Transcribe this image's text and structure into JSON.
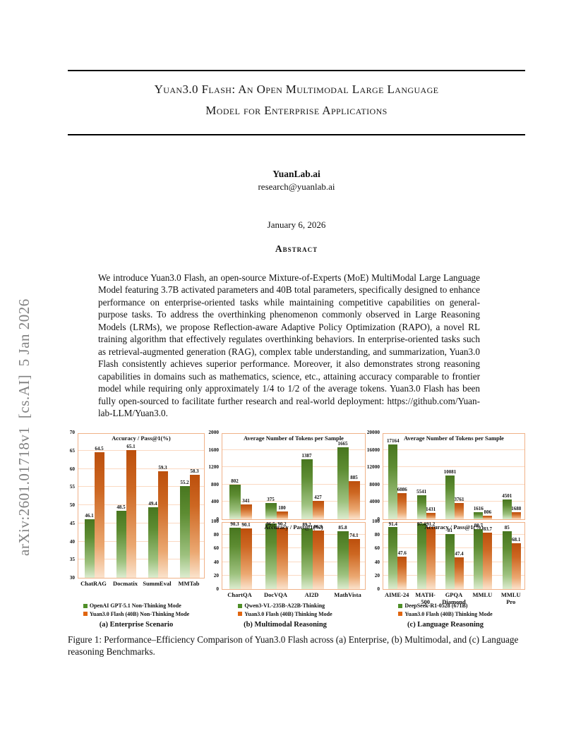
{
  "arxiv_label": "arXiv:2601.01718v1  [cs.AI]  5 Jan 2026",
  "header": {
    "title_line1": "Yuan3.0 Flash: An Open Multimodal Large Language",
    "title_line2": "Model for Enterprise Applications"
  },
  "authors": {
    "name": "YuanLab.ai",
    "email": "research@yuanlab.ai"
  },
  "date": "January 6, 2026",
  "abstract": {
    "heading": "Abstract",
    "text": "We introduce Yuan3.0 Flash, an open-source Mixture-of-Experts (MoE) MultiModal Large Language Model featuring 3.7B activated parameters and 40B total parameters, specifically designed to enhance performance on enterprise-oriented tasks while maintaining competitive capabilities on general-purpose tasks. To address the overthinking phenomenon commonly observed in Large Reasoning Models (LRMs), we propose Reflection-aware Adaptive Policy Optimization (RAPO), a novel RL training algorithm that effectively regulates overthinking behaviors. In enterprise-oriented tasks such as retrieval-augmented generation (RAG), complex table understanding, and summarization, Yuan3.0 Flash consistently achieves superior performance. Moreover, it also demonstrates strong reasoning capabilities in domains such as mathematics, science, etc., attaining accuracy comparable to frontier model while requiring only approximately 1/4 to 1/2 of the average tokens. Yuan3.0 Flash has been fully open-sourced to facilitate further research and real-world deployment: https://github.com/Yuan-lab-LLM/Yuan3.0."
  },
  "figure": {
    "caption": "Figure 1: Performance–Efficiency Comparison of Yuan3.0 Flash across (a) Enterprise, (b) Multimodal, and (c) Language reasoning Benchmarks."
  },
  "colors": {
    "bar_green_top": "#48761f",
    "bar_green_bottom": "#ddecd0",
    "bar_orange_top": "#bc4f0c",
    "bar_orange_bottom": "#fbe3cd",
    "panel_border": "#f0b288",
    "gridline": "#fbd9c2",
    "legend_green": "#4f8f28",
    "legend_orange": "#e0650f"
  },
  "chart_data": [
    {
      "id": "a",
      "type": "bar",
      "subcaption": "(a) Enterprise Scenario",
      "legend": [
        {
          "label": "OpenAI GPT-5.1 Non-Thinking Mode",
          "color": "green"
        },
        {
          "label": "Yuan3.0 Flash (40B) Non-Thinking Mode",
          "color": "orange"
        }
      ],
      "categories": [
        "ChatRAG",
        "Docmatix",
        "SummEval",
        "MMTab"
      ],
      "panels": [
        {
          "title": "Accuracy / Pass@1(%)",
          "ylim": [
            30,
            70
          ],
          "yticks": [
            30,
            35,
            40,
            45,
            50,
            55,
            60,
            65,
            70
          ],
          "grid": true,
          "series": [
            {
              "name": "OpenAI GPT-5.1 Non-Thinking Mode",
              "color": "green",
              "values": [
                46.1,
                48.5,
                49.4,
                55.2
              ]
            },
            {
              "name": "Yuan3.0 Flash (40B) Non-Thinking Mode",
              "color": "orange",
              "values": [
                64.5,
                65.1,
                59.3,
                58.3
              ]
            }
          ]
        }
      ]
    },
    {
      "id": "b",
      "type": "bar",
      "subcaption": "(b) Multimodal Reasoning",
      "legend": [
        {
          "label": "Qwen3-VL-235B-A22B-Thinking",
          "color": "green"
        },
        {
          "label": "Yuan3.0 Flash (40B) Thinking Mode",
          "color": "orange"
        }
      ],
      "categories": [
        "ChartQA",
        "DocVQA",
        "AI2D",
        "MathVista"
      ],
      "panels": [
        {
          "title": "Average Number of Tokens per Sample",
          "ylim": [
            0,
            2000
          ],
          "yticks": [
            0,
            400,
            800,
            1200,
            1600,
            2000
          ],
          "grid": true,
          "series": [
            {
              "name": "Qwen3-VL-235B-A22B-Thinking",
              "color": "green",
              "values": [
                802,
                375,
                1387,
                1665
              ]
            },
            {
              "name": "Yuan3.0 Flash (40B) Thinking Mode",
              "color": "orange",
              "values": [
                341,
                180,
                427,
                885
              ]
            }
          ]
        },
        {
          "title": "Accuracy / Pass@1(%)",
          "ylim": [
            0,
            100
          ],
          "yticks": [
            0,
            20,
            40,
            60,
            80,
            100
          ],
          "grid": true,
          "series": [
            {
              "name": "Qwen3-VL-235B-A22B-Thinking",
              "color": "green",
              "values": [
                90.3,
                96.5,
                89.2,
                85.8
              ]
            },
            {
              "name": "Yuan3.0 Flash (40B) Thinking Mode",
              "color": "orange",
              "values": [
                90.1,
                90.2,
                86.9,
                74.1
              ]
            }
          ]
        }
      ]
    },
    {
      "id": "c",
      "type": "bar",
      "subcaption": "(c) Language Reasoning",
      "legend": [
        {
          "label": "DeepSeek-R1-0528 (671B)",
          "color": "green"
        },
        {
          "label": "Yuan3.0 Flash (40B) Thinking Mode",
          "color": "orange"
        }
      ],
      "categories": [
        "AIME-24",
        "MATH-500",
        "GPQA\nDiamond",
        "MMLU",
        "MMLU\nPro"
      ],
      "panels": [
        {
          "title": "Average Number of Tokens per Sample",
          "ylim": [
            0,
            20000
          ],
          "yticks": [
            0,
            4000,
            8000,
            12000,
            16000,
            20000
          ],
          "grid": true,
          "series": [
            {
              "name": "DeepSeek-R1-0528 (671B)",
              "color": "green",
              "values": [
                17164,
                5541,
                10081,
                1616,
                4501
              ]
            },
            {
              "name": "Yuan3.0 Flash (40B) Thinking Mode",
              "color": "orange",
              "values": [
                6086,
                1431,
                3761,
                806,
                1688
              ]
            }
          ]
        },
        {
          "title": "Accuracy / Pass@1(%)",
          "ylim": [
            0,
            100
          ],
          "yticks": [
            0,
            20,
            40,
            60,
            80,
            100
          ],
          "grid": true,
          "series": [
            {
              "name": "DeepSeek-R1-0528 (671B)",
              "color": "green",
              "values": [
                91.4,
                97.4,
                81,
                88.7,
                85
              ]
            },
            {
              "name": "Yuan3.0 Flash (40B) Thinking Mode",
              "color": "orange",
              "values": [
                47.6,
                91.2,
                47.4,
                83.7,
                68.1
              ]
            }
          ]
        }
      ]
    }
  ]
}
